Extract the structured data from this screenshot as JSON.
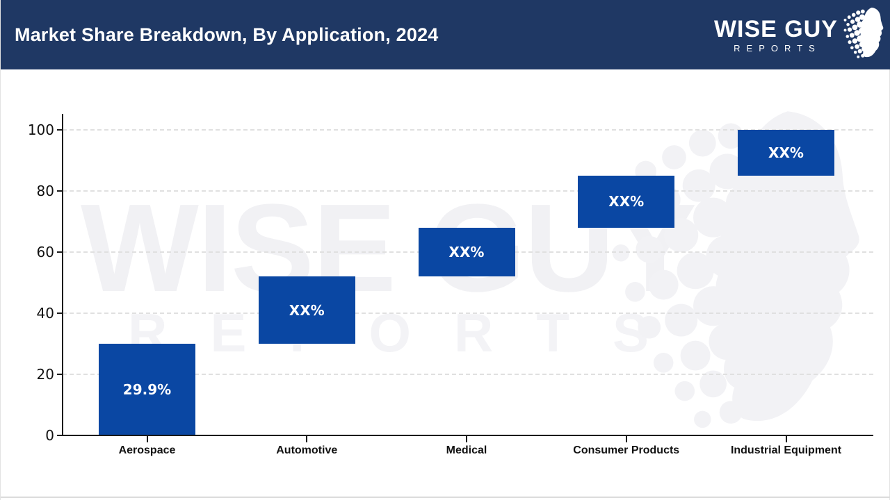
{
  "header": {
    "title": "Market Share Breakdown, By Application, 2024",
    "logo": {
      "line1": "WISE GUY",
      "line2": "REPORTS"
    }
  },
  "watermark": {
    "line1": "WISE GUY",
    "line2": "REPORTS"
  },
  "chart_data": {
    "type": "bar",
    "subtype": "floating-waterfall",
    "title": "Market Share Breakdown, By Application, 2024",
    "categories": [
      "Aerospace",
      "Automotive",
      "Medical",
      "Consumer Products",
      "Industrial Equipment"
    ],
    "series": [
      {
        "name": "Market share by application",
        "segments": [
          {
            "category": "Aerospace",
            "start": 0,
            "end": 29.9,
            "label": "29.9%"
          },
          {
            "category": "Automotive",
            "start": 30,
            "end": 52,
            "label": "XX%"
          },
          {
            "category": "Medical",
            "start": 52,
            "end": 68,
            "label": "XX%"
          },
          {
            "category": "Consumer Products",
            "start": 68,
            "end": 85,
            "label": "XX%"
          },
          {
            "category": "Industrial Equipment",
            "start": 85,
            "end": 100,
            "label": "XX%"
          }
        ]
      }
    ],
    "xlabel": "",
    "ylabel": "",
    "ylim": [
      0,
      100
    ],
    "yticks": [
      0,
      20,
      40,
      60,
      80,
      100
    ],
    "grid": "horizontal-dashed",
    "legend": "none",
    "bar_color": "#0a47a3",
    "bar_label_color": "#ffffff",
    "header_color": "#1f3864",
    "axis_color": "#1a1a1a",
    "gridline_color": "#e0e0e0",
    "watermark_color": "#f1f1f4"
  }
}
